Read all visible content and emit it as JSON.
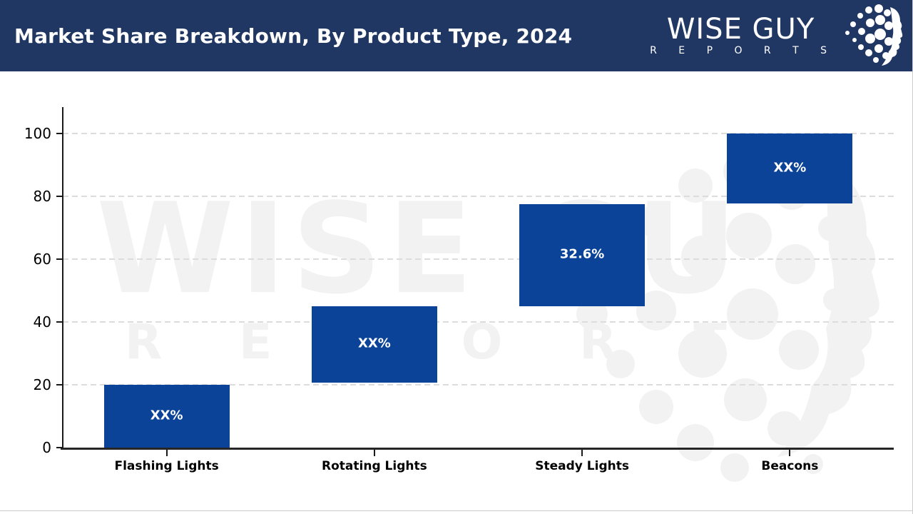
{
  "header": {
    "title": "Market Share Breakdown, By Product Type, 2024",
    "bg_color": "#203663",
    "logo": {
      "line1": "WISE GUY",
      "line2": "R E P O R T S"
    }
  },
  "watermark": {
    "line1": "WISE GU",
    "line2": "R E P O R T"
  },
  "chart_data": {
    "type": "bar",
    "subtype": "floating-waterfall",
    "title": "Market Share Breakdown, By Product Type, 2024",
    "categories": [
      "Flashing Lights",
      "Rotating Lights",
      "Steady Lights",
      "Beacons"
    ],
    "segments": [
      {
        "category": "Flashing Lights",
        "start": 0,
        "end": 20,
        "label": "XX%"
      },
      {
        "category": "Rotating Lights",
        "start": 20.7,
        "end": 45,
        "label": "XX%"
      },
      {
        "category": "Steady Lights",
        "start": 45,
        "end": 77.6,
        "label": "32.6%"
      },
      {
        "category": "Beacons",
        "start": 77.7,
        "end": 100,
        "label": "XX%"
      }
    ],
    "y_ticks": [
      0,
      20,
      40,
      60,
      80,
      100
    ],
    "ylim": [
      0,
      108
    ],
    "xlabel": "",
    "ylabel": "",
    "bar_color": "#0b4399",
    "bar_label_color": "#ffffff",
    "grid": "horizontal-dashed",
    "grid_color": "#dcdcdc",
    "axis_color": "#1a1a1a"
  }
}
